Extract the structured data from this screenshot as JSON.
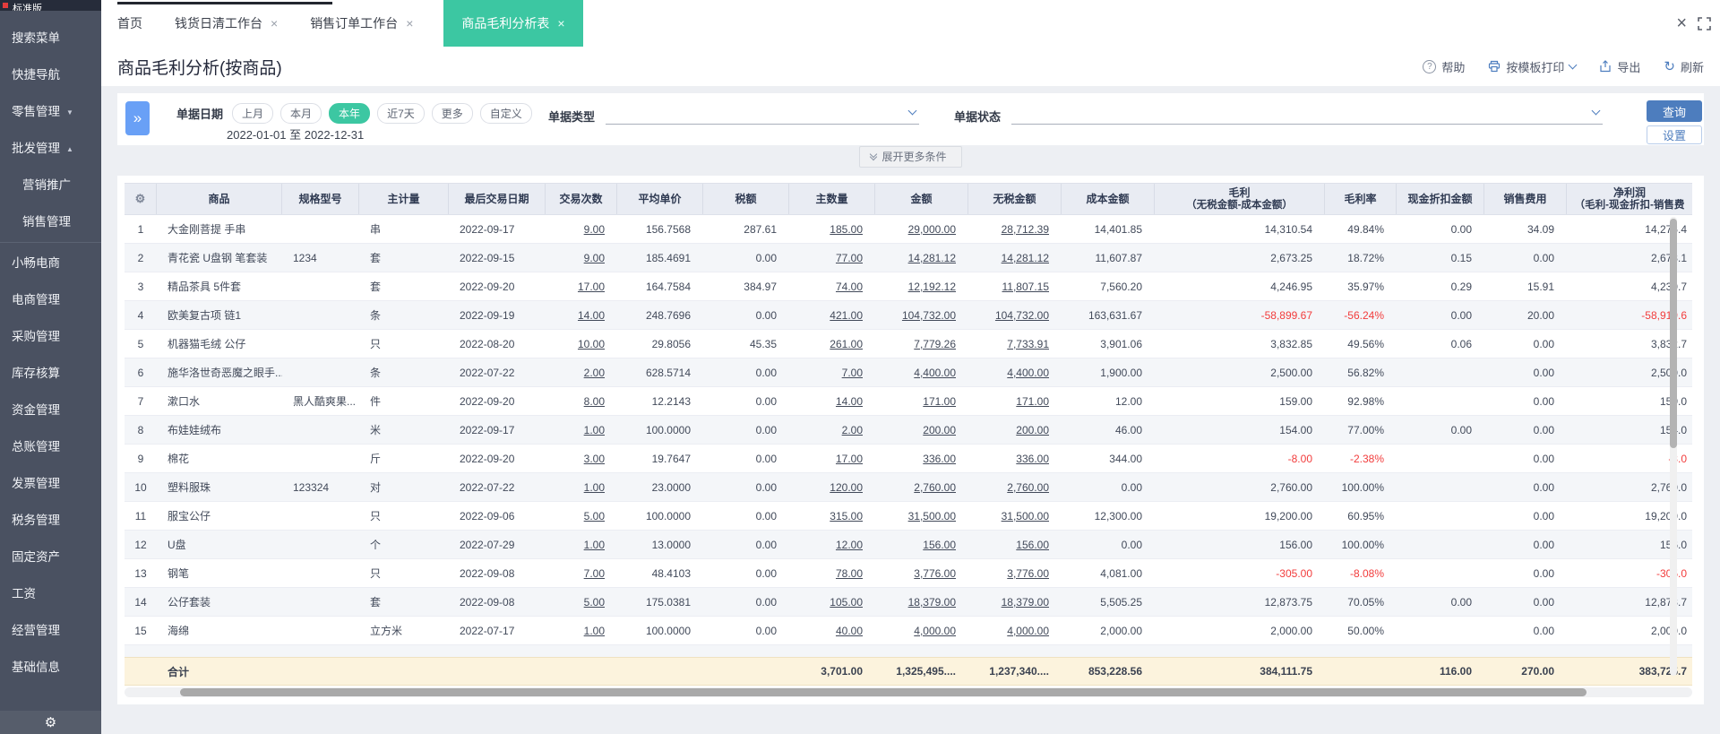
{
  "sidebar": {
    "logo_text": "标准版",
    "items": [
      {
        "label": "搜索菜单"
      },
      {
        "label": "快捷导航"
      },
      {
        "label": "零售管理",
        "arrow": "down"
      },
      {
        "label": "批发管理",
        "arrow": "up"
      },
      {
        "label": "营销推广",
        "sub": true
      },
      {
        "label": "销售管理",
        "sub": true,
        "divider_after": true
      },
      {
        "label": "小畅电商"
      },
      {
        "label": "电商管理"
      },
      {
        "label": "采购管理"
      },
      {
        "label": "库存核算"
      },
      {
        "label": "资金管理"
      },
      {
        "label": "总账管理"
      },
      {
        "label": "发票管理"
      },
      {
        "label": "税务管理"
      },
      {
        "label": "固定资产"
      },
      {
        "label": "工资"
      },
      {
        "label": "经营管理"
      },
      {
        "label": "基础信息"
      }
    ]
  },
  "tabs": [
    {
      "label": "首页",
      "closable": false,
      "active": false
    },
    {
      "label": "钱货日清工作台",
      "closable": true,
      "active": false
    },
    {
      "label": "销售订单工作台",
      "closable": true,
      "active": false
    },
    {
      "label": "商品毛利分析表",
      "closable": true,
      "active": true
    }
  ],
  "page": {
    "title": "商品毛利分析(按商品)"
  },
  "toolbar": [
    {
      "name": "help",
      "label": "帮助",
      "icon": "help"
    },
    {
      "name": "print",
      "label": "按模板打印",
      "icon": "printer",
      "dropdown": true
    },
    {
      "name": "export",
      "label": "导出",
      "icon": "export"
    },
    {
      "name": "refresh",
      "label": "刷新",
      "icon": "refresh"
    }
  ],
  "filters": {
    "date_label": "单据日期",
    "presets": [
      "上月",
      "本月",
      "本年",
      "近7天",
      "更多",
      "自定义"
    ],
    "active_preset": "本年",
    "range": "2022-01-01 至 2022-12-31",
    "type_label": "单据类型",
    "status_label": "单据状态",
    "query_label": "查询",
    "settings_label": "设置",
    "expand_more_label": "展开更多条件"
  },
  "table": {
    "columns": [
      {
        "label": "",
        "icon": "gear"
      },
      {
        "label": "商品"
      },
      {
        "label": "规格型号"
      },
      {
        "label": "主计量"
      },
      {
        "label": "最后交易日期"
      },
      {
        "label": "交易次数"
      },
      {
        "label": "平均单价"
      },
      {
        "label": "税额"
      },
      {
        "label": "主数量"
      },
      {
        "label": "金额"
      },
      {
        "label": "无税金额"
      },
      {
        "label": "成本金额"
      },
      {
        "label": "毛利",
        "sub": "（无税金额-成本金额）"
      },
      {
        "label": "毛利率"
      },
      {
        "label": "现金折扣金额"
      },
      {
        "label": "销售费用"
      },
      {
        "label": "净利润",
        "sub": "（毛利-现金折扣-销售费"
      }
    ],
    "rows": [
      [
        "1",
        "大金刚菩提 手串",
        "",
        "串",
        "2022-09-17",
        "9.00",
        "156.7568",
        "287.61",
        "185.00",
        "29,000.00",
        "28,712.39",
        "14,401.85",
        "14,310.54",
        "49.84%",
        "0.00",
        "34.09",
        "14,276.4"
      ],
      [
        "2",
        "青花瓷 U盘钢 笔套装",
        "1234",
        "套",
        "2022-09-15",
        "9.00",
        "185.4691",
        "0.00",
        "77.00",
        "14,281.12",
        "14,281.12",
        "11,607.87",
        "2,673.25",
        "18.72%",
        "0.15",
        "0.00",
        "2,673.1"
      ],
      [
        "3",
        "精品茶具 5件套",
        "",
        "套",
        "2022-09-20",
        "17.00",
        "164.7584",
        "384.97",
        "74.00",
        "12,192.12",
        "11,807.15",
        "7,560.20",
        "4,246.95",
        "35.97%",
        "0.29",
        "15.91",
        "4,230.7"
      ],
      [
        "4",
        "欧美复古项 链1",
        "",
        "条",
        "2022-09-19",
        "14.00",
        "248.7696",
        "0.00",
        "421.00",
        "104,732.00",
        "104,732.00",
        "163,631.67",
        "-58,899.67",
        "-56.24%",
        "0.00",
        "20.00",
        "-58,919.6"
      ],
      [
        "5",
        "机器猫毛绒 公仔",
        "",
        "只",
        "2022-08-20",
        "10.00",
        "29.8056",
        "45.35",
        "261.00",
        "7,779.26",
        "7,733.91",
        "3,901.06",
        "3,832.85",
        "49.56%",
        "0.06",
        "0.00",
        "3,832.7"
      ],
      [
        "6",
        "施华洛世奇恶魔之眼手...",
        "",
        "条",
        "2022-07-22",
        "2.00",
        "628.5714",
        "0.00",
        "7.00",
        "4,400.00",
        "4,400.00",
        "1,900.00",
        "2,500.00",
        "56.82%",
        "",
        "0.00",
        "2,500.0"
      ],
      [
        "7",
        "漱口水",
        "黑人酷爽果...",
        "件",
        "2022-09-20",
        "8.00",
        "12.2143",
        "0.00",
        "14.00",
        "171.00",
        "171.00",
        "12.00",
        "159.00",
        "92.98%",
        "",
        "0.00",
        "159.0"
      ],
      [
        "8",
        "布娃娃绒布",
        "",
        "米",
        "2022-09-17",
        "1.00",
        "100.0000",
        "0.00",
        "2.00",
        "200.00",
        "200.00",
        "46.00",
        "154.00",
        "77.00%",
        "0.00",
        "0.00",
        "154.0"
      ],
      [
        "9",
        "棉花",
        "",
        "斤",
        "2022-09-20",
        "3.00",
        "19.7647",
        "0.00",
        "17.00",
        "336.00",
        "336.00",
        "344.00",
        "-8.00",
        "-2.38%",
        "",
        "0.00",
        "-8.0"
      ],
      [
        "10",
        "塑料服珠",
        "123324",
        "对",
        "2022-07-22",
        "1.00",
        "23.0000",
        "0.00",
        "120.00",
        "2,760.00",
        "2,760.00",
        "0.00",
        "2,760.00",
        "100.00%",
        "",
        "0.00",
        "2,760.0"
      ],
      [
        "11",
        "服宝公仔",
        "",
        "只",
        "2022-09-06",
        "5.00",
        "100.0000",
        "0.00",
        "315.00",
        "31,500.00",
        "31,500.00",
        "12,300.00",
        "19,200.00",
        "60.95%",
        "",
        "0.00",
        "19,200.0"
      ],
      [
        "12",
        "U盘",
        "",
        "个",
        "2022-07-29",
        "1.00",
        "13.0000",
        "0.00",
        "12.00",
        "156.00",
        "156.00",
        "0.00",
        "156.00",
        "100.00%",
        "",
        "0.00",
        "156.0"
      ],
      [
        "13",
        "钢笔",
        "",
        "只",
        "2022-09-08",
        "7.00",
        "48.4103",
        "0.00",
        "78.00",
        "3,776.00",
        "3,776.00",
        "4,081.00",
        "-305.00",
        "-8.08%",
        "",
        "0.00",
        "-305.0"
      ],
      [
        "14",
        "公仔套装",
        "",
        "套",
        "2022-09-08",
        "5.00",
        "175.0381",
        "0.00",
        "105.00",
        "18,379.00",
        "18,379.00",
        "5,505.25",
        "12,873.75",
        "70.05%",
        "0.00",
        "0.00",
        "12,873.7"
      ],
      [
        "15",
        "海绵",
        "",
        "立方米",
        "2022-07-17",
        "1.00",
        "100.0000",
        "0.00",
        "40.00",
        "4,000.00",
        "4,000.00",
        "2,000.00",
        "2,000.00",
        "50.00%",
        "",
        "0.00",
        "2,000.0"
      ]
    ],
    "total_row": [
      "",
      "合计",
      "",
      "",
      "",
      "",
      "",
      "",
      "3,701.00",
      "1,325,495....",
      "1,237,340....",
      "853,228.56",
      "384,111.75",
      "",
      "116.00",
      "270.00",
      "383,725.7"
    ]
  }
}
